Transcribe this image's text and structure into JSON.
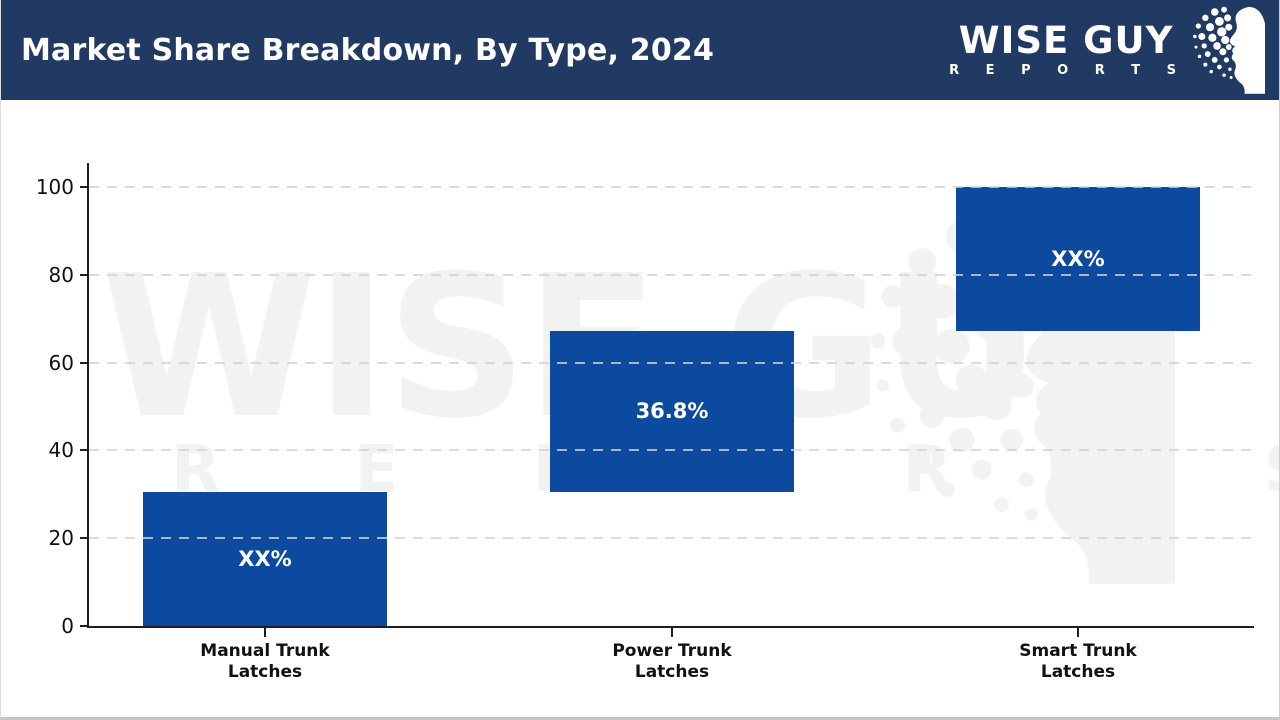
{
  "header": {
    "title": "Market Share Breakdown, By Type, 2024",
    "logo": {
      "brand_line1": "WISE GUY",
      "brand_line2": "R E P O R T S"
    }
  },
  "watermark": {
    "brand_line1": "WISE GUY",
    "brand_line2": "R E P O R T S"
  },
  "colors": {
    "header_bg": "#213a63",
    "header_text": "#ffffff",
    "bar": "#0b4a9f",
    "bar_label": "#ffffff",
    "axis": "#1d1d1d",
    "tick_label": "#111111",
    "grid": "#d2d2d2",
    "watermark": "#f2f2f2"
  },
  "chart_data": {
    "type": "bar",
    "subtype": "waterfall",
    "title": "Market Share Breakdown, By Type, 2024",
    "categories": [
      "Manual Trunk Latches",
      "Power Trunk Latches",
      "Smart Trunk Latches"
    ],
    "series": [
      {
        "name": "Market share (%)",
        "segments": [
          {
            "category": "Manual Trunk Latches",
            "start": 0,
            "end": 30.5,
            "label": "XX%"
          },
          {
            "category": "Power Trunk Latches",
            "start": 30.5,
            "end": 67.3,
            "label": "36.8%"
          },
          {
            "category": "Smart Trunk Latches",
            "start": 67.3,
            "end": 100,
            "label": "XX%"
          }
        ]
      }
    ],
    "yticks": [
      0,
      20,
      40,
      60,
      80,
      100
    ],
    "ylim": [
      0,
      105
    ],
    "xlabel": "",
    "ylabel": "",
    "grid": "horizontal-dashed",
    "legend": "none"
  }
}
